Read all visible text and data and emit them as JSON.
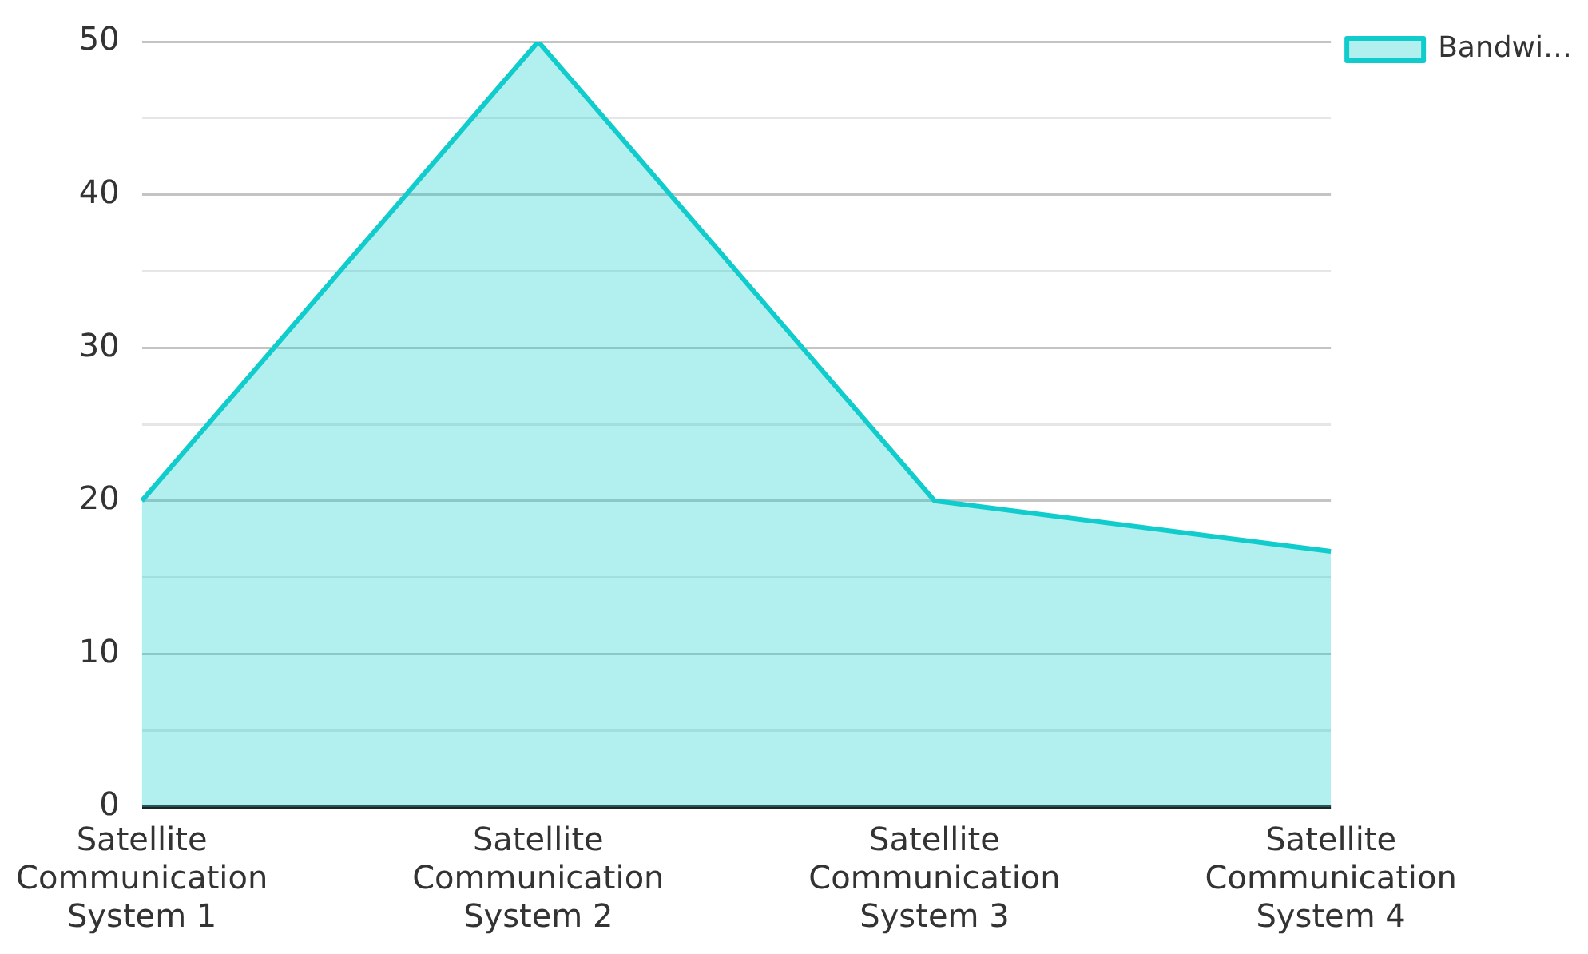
{
  "chart_data": {
    "type": "area",
    "categories": [
      "Satellite Communication System 1",
      "Satellite Communication System 2",
      "Satellite Communication System 3",
      "Satellite Communication System 4"
    ],
    "series": [
      {
        "name": "Bandwi…",
        "color": "#11cccc",
        "values": [
          20,
          50,
          20,
          16.7
        ]
      }
    ],
    "ylim": [
      0,
      50
    ],
    "yticks": [
      0,
      {
        "value": 5,
        "label": null
      },
      10,
      {
        "value": 15,
        "label": null
      },
      20,
      {
        "value": 25,
        "label": null
      },
      30,
      {
        "value": 35,
        "label": null
      },
      40,
      {
        "value": 45,
        "label": null
      },
      50
    ],
    "grid": "y",
    "legend": "top right",
    "marker": "none",
    "line_style": "solid"
  }
}
